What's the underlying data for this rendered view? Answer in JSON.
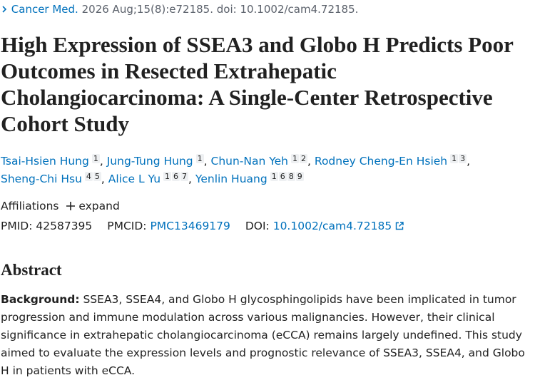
{
  "citation": {
    "journal": "Cancer Med.",
    "details": "2026 Aug;15(8):e72185. doi: 10.1002/cam4.72185."
  },
  "title": "High Expression of SSEA3 and Globo H Predicts Poor Outcomes in Resected Extrahepatic Cholangiocarcinoma: A Single-Center Retrospective Cohort Study",
  "author_separator": ",",
  "authors": [
    {
      "name": "Tsai-Hsien Hung",
      "affiliations": [
        "1"
      ]
    },
    {
      "name": "Jung-Tung Hung",
      "affiliations": [
        "1"
      ]
    },
    {
      "name": "Chun-Nan Yeh",
      "affiliations": [
        "1",
        "2"
      ]
    },
    {
      "name": "Rodney Cheng-En Hsieh",
      "affiliations": [
        "1",
        "3"
      ]
    },
    {
      "name": "Sheng-Chi Hsu",
      "affiliations": [
        "4",
        "5"
      ]
    },
    {
      "name": "Alice L Yu",
      "affiliations": [
        "1",
        "6",
        "7"
      ]
    },
    {
      "name": "Yenlin Huang",
      "affiliations": [
        "1",
        "6",
        "8",
        "9"
      ]
    }
  ],
  "affiliations": {
    "label": "Affiliations",
    "toggle": "expand"
  },
  "identifiers": {
    "pmid_label": "PMID:",
    "pmid": "42587395",
    "pmcid_label": "PMCID:",
    "pmcid": "PMC13469179",
    "doi_label": "DOI:",
    "doi": "10.1002/cam4.72185"
  },
  "abstract": {
    "heading": "Abstract",
    "background_label": "Background:",
    "background": "SSEA3, SSEA4, and Globo H glycosphingolipids have been implicated in tumor progression and immune modulation across various malignancies. However, their clinical significance in extrahepatic cholangiocarcinoma (eCCA) remains largely undefined. This study aimed to evaluate the expression levels and prognostic relevance of SSEA3, SSEA4, and Globo H in patients with eCCA."
  }
}
